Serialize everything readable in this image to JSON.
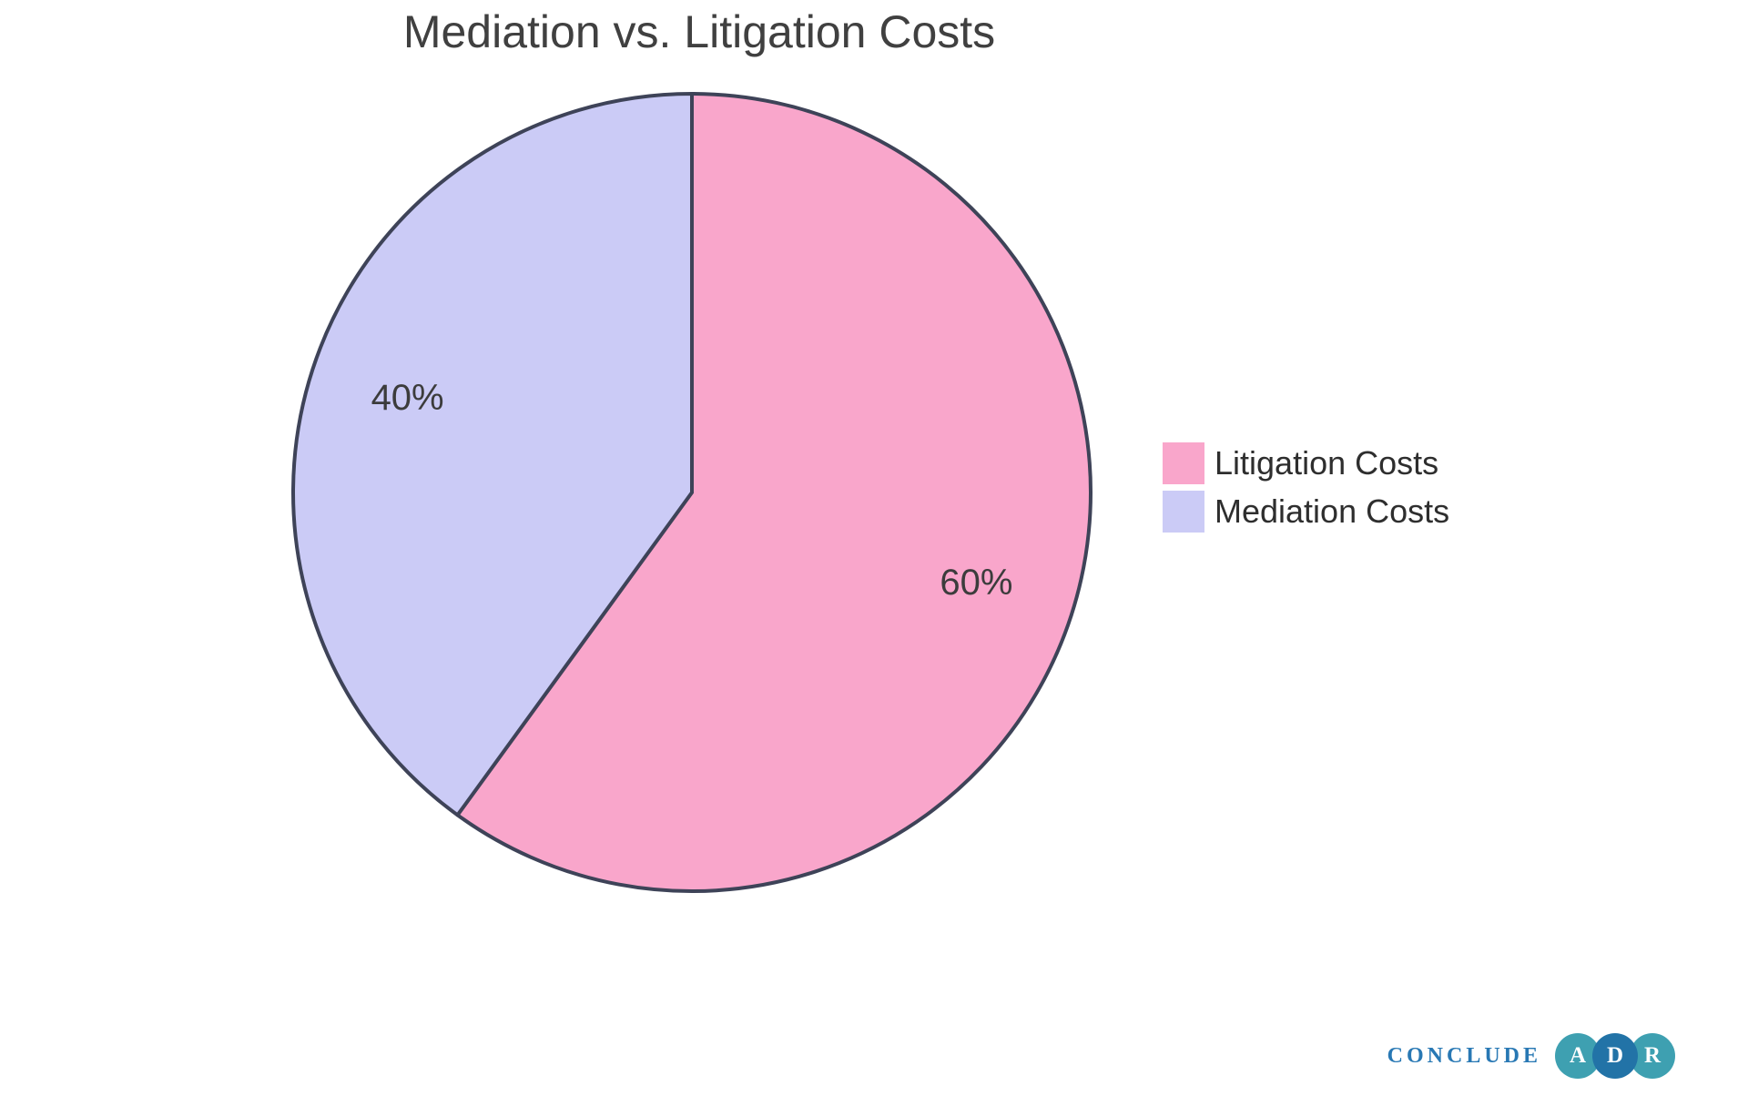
{
  "title": {
    "text": "Mediation vs. Litigation Costs",
    "color": "#404040"
  },
  "chart_data": {
    "type": "pie",
    "title": "Mediation vs. Litigation Costs",
    "labels": [
      "Litigation Costs",
      "Mediation Costs"
    ],
    "values": [
      60,
      40
    ],
    "unit": "%",
    "slice_label_texts": [
      "60%",
      "40%"
    ],
    "colors": [
      "#F9A6CB",
      "#CBCBF6"
    ],
    "border_color": "#3E4358",
    "border_width": 4,
    "slice_label_color": "#3C3C3C",
    "start_angle_deg": -90,
    "direction": "clockwise",
    "legend_position": "right",
    "grid": false
  },
  "legend": {
    "items": [
      {
        "label": "Litigation Costs",
        "color": "#F9A6CB"
      },
      {
        "label": "Mediation Costs",
        "color": "#CBCBF6"
      }
    ],
    "text_color": "#2E2E2E"
  },
  "watermark": {
    "brand_text": "CONCLUDE",
    "brand_color": "#2878B4",
    "letter_color": "#FFFFFF",
    "badges": [
      {
        "letter": "A",
        "color": "#3EA0B1"
      },
      {
        "letter": "D",
        "color": "#2273A7"
      },
      {
        "letter": "R",
        "color": "#3EA0B1"
      }
    ]
  }
}
